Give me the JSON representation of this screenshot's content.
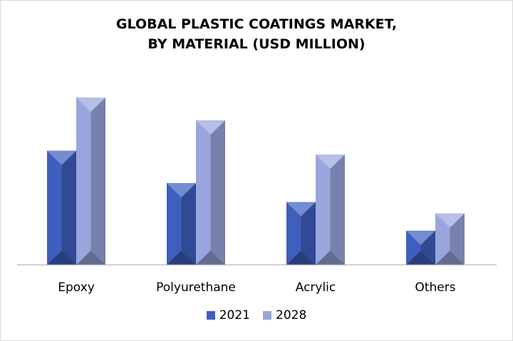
{
  "chart_data": {
    "type": "bar",
    "title_lines": [
      "GLOBAL PLASTIC COATINGS MARKET,",
      "BY MATERIAL (USD MILLION)"
    ],
    "categories": [
      "Epoxy",
      "Polyurethane",
      "Acrylic",
      "Others"
    ],
    "series": [
      {
        "name": "2021",
        "values": [
          60,
          43,
          33,
          18
        ],
        "color": "#3f5fbf"
      },
      {
        "name": "2028",
        "values": [
          88,
          76,
          58,
          27
        ],
        "color": "#98a6dd"
      }
    ],
    "ylim": [
      0,
      100
    ],
    "xlabel": "",
    "ylabel": "",
    "grid": false,
    "legend_position": "bottom"
  }
}
